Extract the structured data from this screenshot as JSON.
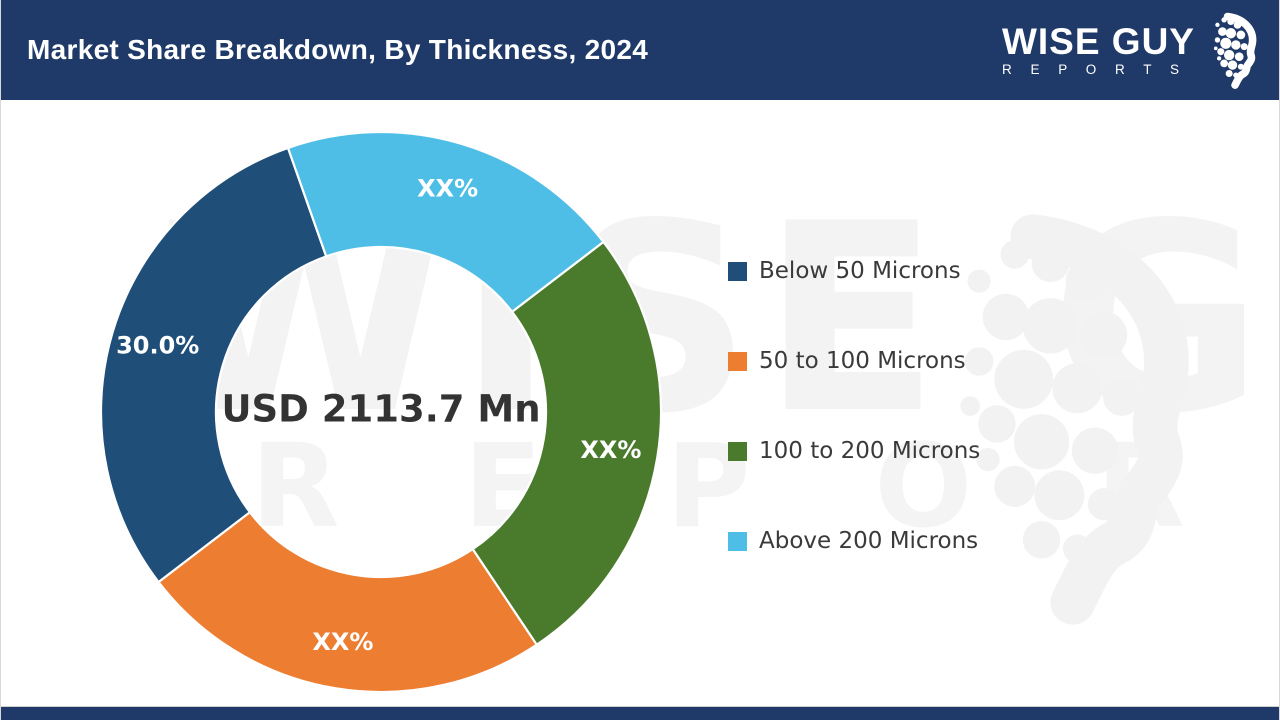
{
  "header": {
    "title": "Market Share Breakdown, By Thickness, 2024",
    "logo": {
      "name": "WISE GUY",
      "tagline": "R E P O R T S"
    }
  },
  "watermark": {
    "line1": "WISE GUY",
    "line2": "R E P O R T S"
  },
  "chart_data": {
    "type": "pie",
    "subtype": "donut",
    "title": "Market Share Breakdown, By Thickness, 2024",
    "center_label": "USD 2113.7 Mn",
    "unit": "percent",
    "legend_position": "right",
    "start_angle_deg": -19.4,
    "direction": "counterclockwise",
    "slices": [
      {
        "label": "Below 50 Microns",
        "value": 30.0,
        "display_label": "30.0%",
        "color": "#1F4E79"
      },
      {
        "label": "50 to 100 Microns",
        "value": 24.0,
        "display_label": "XX%",
        "color": "#ED7D31"
      },
      {
        "label": "100 to 200 Microns",
        "value": 26.0,
        "display_label": "XX%",
        "color": "#4A7A2B"
      },
      {
        "label": "Above 200 Microns",
        "value": 20.0,
        "display_label": "XX%",
        "color": "#4FBEE7"
      }
    ]
  },
  "colors": {
    "header_bg": "#1F3A68",
    "footer_bg": "#1F3A68",
    "page_border": "#D8D8D8",
    "center_text": "#333333",
    "legend_text": "#3A3A3A",
    "slice_label_text": "#FFFFFF"
  }
}
